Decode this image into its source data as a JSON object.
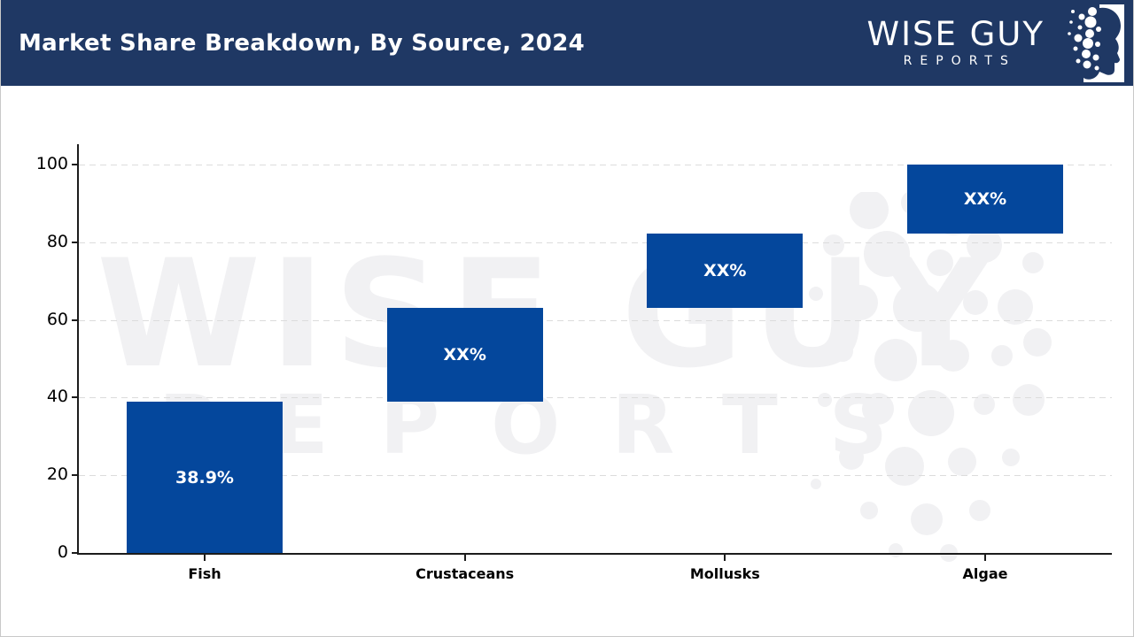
{
  "header": {
    "title": "Market Share Breakdown, By Source, 2024",
    "logo": {
      "name": "WISE GUY",
      "subtitle": "REPORTS"
    }
  },
  "watermark": {
    "line1": "WISE GUY",
    "line2": "REPORTS"
  },
  "chart_data": {
    "type": "bar",
    "subtype": "waterfall",
    "title": "Market Share Breakdown, By Source, 2024",
    "categories": [
      "Fish",
      "Crustaceans",
      "Mollusks",
      "Algae"
    ],
    "series": [
      {
        "name": "Market Share",
        "segments": [
          {
            "category": "Fish",
            "start": 0,
            "end": 38.9,
            "label": "38.9%"
          },
          {
            "category": "Crustaceans",
            "start": 38.9,
            "end": 63.0,
            "label": "XX%"
          },
          {
            "category": "Mollusks",
            "start": 63.0,
            "end": 82.3,
            "label": "XX%"
          },
          {
            "category": "Algae",
            "start": 82.3,
            "end": 100,
            "label": "XX%"
          }
        ]
      }
    ],
    "yticks": [
      0,
      20,
      40,
      60,
      80,
      100
    ],
    "ylim": [
      0,
      105
    ],
    "xlabel": "",
    "ylabel": "",
    "grid": "horizontal-dashed",
    "legend": "none",
    "bar_color": "#04479c",
    "bar_label_color": "#ffffff",
    "axis_color": "#1c1c1c",
    "gridline_color": "#dcdcdc",
    "header_color": "#1f3864"
  }
}
